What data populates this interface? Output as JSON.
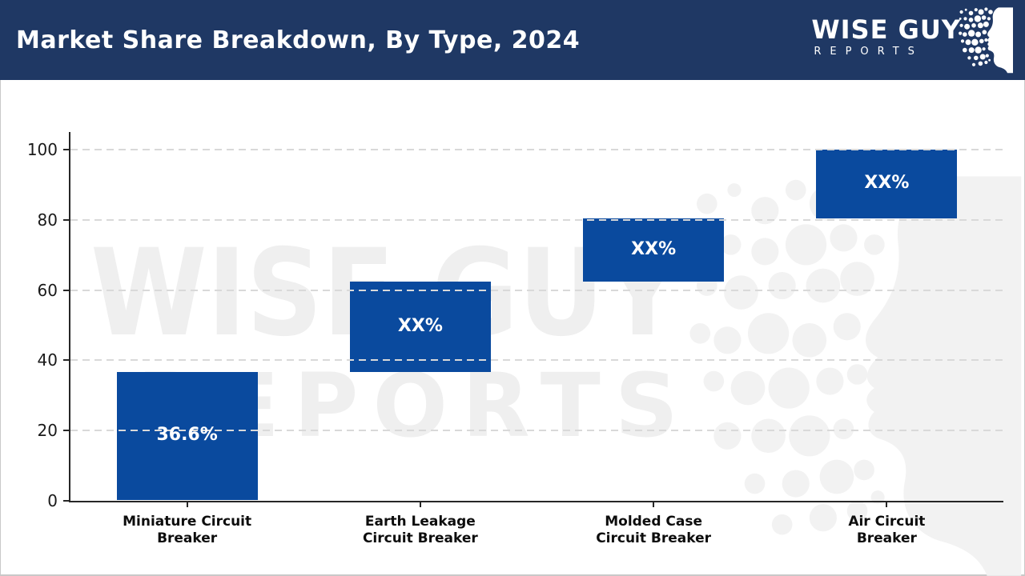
{
  "header": {
    "title": "Market Share Breakdown, By Type, 2024",
    "logo": {
      "line1": "WISE GUY",
      "line2": "REPORTS"
    }
  },
  "watermark": {
    "line1": "WISE GUY",
    "line2": "REPORTS"
  },
  "colors": {
    "header_bg": "#1f3864",
    "bar": "#0a4a9e",
    "grid": "#d9d9d9",
    "axis": "#262626",
    "tick_label": "#1a1a1a",
    "category_label": "#0d0d0d",
    "bar_label": "#ffffff",
    "watermark_text": "#efefef",
    "watermark_head": "#f2f2f2",
    "page_border": "#c9c9c9",
    "title_color": "#ffffff"
  },
  "chart_data": {
    "type": "bar",
    "subtype": "waterfall",
    "title": "Market Share Breakdown, By Type, 2024",
    "categories": [
      "Miniature Circuit Breaker",
      "Earth Leakage Circuit Breaker",
      "Molded Case Circuit Breaker",
      "Air Circuit Breaker"
    ],
    "category_lines": [
      [
        "Miniature Circuit",
        "Breaker"
      ],
      [
        "Earth Leakage",
        "Circuit Breaker"
      ],
      [
        "Molded Case",
        "Circuit Breaker"
      ],
      [
        "Air Circuit",
        "Breaker"
      ]
    ],
    "segments": [
      {
        "start": 0,
        "end": 36.6,
        "label": "36.6%"
      },
      {
        "start": 36.6,
        "end": 62.4,
        "label": "XX%"
      },
      {
        "start": 62.4,
        "end": 80.4,
        "label": "XX%"
      },
      {
        "start": 80.4,
        "end": 100,
        "label": "XX%"
      }
    ],
    "xlabel": "",
    "ylabel": "",
    "ylim": [
      0,
      105
    ],
    "yticks": [
      0,
      20,
      40,
      60,
      80,
      100
    ],
    "grid": "horizontal dashed gridlines drawn above bars",
    "legend": "none",
    "bar_color": "#0a4a9e",
    "value_label_color": "#ffffff"
  }
}
